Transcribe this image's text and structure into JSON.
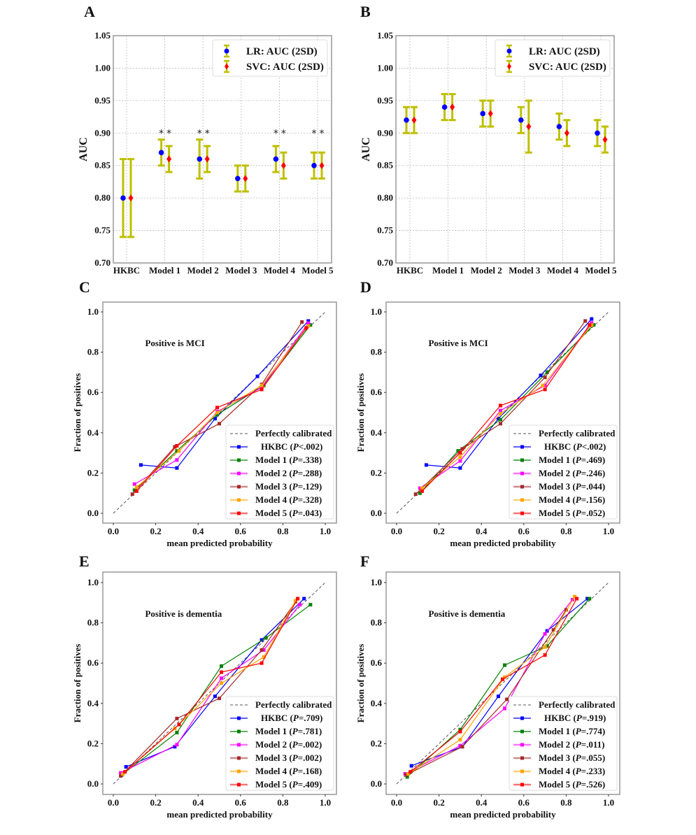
{
  "colors": {
    "lr": "#0000ff",
    "svc": "#ff0000",
    "errorbar": "#bfbf00",
    "frame": "#999999",
    "grid": "#bbbbbb",
    "perfect": "#555555",
    "series": {
      "HKBC": "#0000ff",
      "Model 1": "#008000",
      "Model 2": "#ff00ff",
      "Model 3": "#a52a2a",
      "Model 4": "#ffa500",
      "Model 5": "#ff0000"
    }
  },
  "chart_data": [
    {
      "panel": "A",
      "type": "scatter",
      "subtype": "errorbar",
      "title": "",
      "xlabel": "",
      "ylabel": "AUC",
      "ylim": [
        0.7,
        1.05
      ],
      "yticks": [
        "0.70",
        "0.75",
        "0.80",
        "0.85",
        "0.90",
        "0.95",
        "1.00",
        "1.05"
      ],
      "grid": true,
      "legend_position": "top-right",
      "categories": [
        "HKBC",
        "Model 1",
        "Model 2",
        "Model 3",
        "Model 4",
        "Model 5"
      ],
      "series": [
        {
          "name": "LR: AUC (2SD)",
          "marker": "circle",
          "values": [
            0.8,
            0.87,
            0.86,
            0.83,
            0.86,
            0.85
          ],
          "lower": [
            0.74,
            0.85,
            0.83,
            0.81,
            0.84,
            0.83
          ],
          "upper": [
            0.86,
            0.89,
            0.89,
            0.85,
            0.88,
            0.87
          ]
        },
        {
          "name": "SVC: AUC (2SD)",
          "marker": "diamond",
          "values": [
            0.8,
            0.86,
            0.86,
            0.83,
            0.85,
            0.85
          ],
          "lower": [
            0.74,
            0.84,
            0.84,
            0.81,
            0.83,
            0.83
          ],
          "upper": [
            0.86,
            0.88,
            0.88,
            0.85,
            0.87,
            0.87
          ]
        }
      ],
      "significance_markers": {
        "symbol": "*",
        "lr": [
          false,
          true,
          true,
          false,
          true,
          true
        ],
        "svc": [
          false,
          true,
          true,
          false,
          true,
          true
        ]
      }
    },
    {
      "panel": "B",
      "type": "scatter",
      "subtype": "errorbar",
      "title": "",
      "xlabel": "",
      "ylabel": "AUC",
      "ylim": [
        0.7,
        1.05
      ],
      "yticks": [
        "0.70",
        "0.75",
        "0.80",
        "0.85",
        "0.90",
        "0.95",
        "1.00",
        "1.05"
      ],
      "grid": true,
      "legend_position": "top-right",
      "categories": [
        "HKBC",
        "Model 1",
        "Model 2",
        "Model 3",
        "Model 4",
        "Model 5"
      ],
      "series": [
        {
          "name": "LR: AUC (2SD)",
          "marker": "circle",
          "values": [
            0.92,
            0.94,
            0.93,
            0.92,
            0.91,
            0.9
          ],
          "lower": [
            0.9,
            0.92,
            0.91,
            0.9,
            0.89,
            0.88
          ],
          "upper": [
            0.94,
            0.96,
            0.95,
            0.94,
            0.93,
            0.92
          ]
        },
        {
          "name": "SVC: AUC (2SD)",
          "marker": "diamond",
          "values": [
            0.92,
            0.94,
            0.93,
            0.91,
            0.9,
            0.89
          ],
          "lower": [
            0.9,
            0.92,
            0.91,
            0.87,
            0.88,
            0.87
          ],
          "upper": [
            0.94,
            0.96,
            0.95,
            0.95,
            0.92,
            0.91
          ]
        }
      ],
      "significance_markers": {
        "symbol": "*",
        "lr": [
          false,
          false,
          false,
          false,
          false,
          false
        ],
        "svc": [
          false,
          false,
          false,
          false,
          false,
          false
        ]
      }
    },
    {
      "panel": "C",
      "type": "line",
      "annotation": "Positive is MCI",
      "xlabel": "mean predicted probability",
      "ylabel": "Fraction of positives",
      "xlim": [
        0.0,
        1.0
      ],
      "ylim": [
        0.0,
        1.0
      ],
      "xticks": [
        "0.0",
        "0.2",
        "0.4",
        "0.6",
        "0.8",
        "1.0"
      ],
      "yticks": [
        "0.0",
        "0.2",
        "0.4",
        "0.6",
        "0.8",
        "1.0"
      ],
      "grid": false,
      "legend_position": "bottom-right",
      "reference": {
        "name": "Perfectly calibrated",
        "x": [
          0,
          1
        ],
        "y": [
          0,
          1
        ]
      },
      "series": [
        {
          "name": "HKBC",
          "p_label": "<.002",
          "x": [
            0.13,
            0.3,
            0.48,
            0.68,
            0.92
          ],
          "y": [
            0.24,
            0.225,
            0.47,
            0.68,
            0.955
          ]
        },
        {
          "name": "Model 1",
          "p_label": "=.338",
          "x": [
            0.1,
            0.3,
            0.49,
            0.71,
            0.93
          ],
          "y": [
            0.115,
            0.31,
            0.49,
            0.635,
            0.935
          ]
        },
        {
          "name": "Model 2",
          "p_label": "=.288",
          "x": [
            0.1,
            0.3,
            0.49,
            0.7,
            0.92
          ],
          "y": [
            0.145,
            0.265,
            0.505,
            0.625,
            0.945
          ]
        },
        {
          "name": "Model 3",
          "p_label": "=.129",
          "x": [
            0.09,
            0.29,
            0.5,
            0.7,
            0.89
          ],
          "y": [
            0.095,
            0.33,
            0.445,
            0.64,
            0.95
          ]
        },
        {
          "name": "Model 4",
          "p_label": "=.328",
          "x": [
            0.11,
            0.31,
            0.49,
            0.7,
            0.92
          ],
          "y": [
            0.13,
            0.31,
            0.5,
            0.635,
            0.93
          ]
        },
        {
          "name": "Model 5",
          "p_label": "=.043",
          "x": [
            0.11,
            0.3,
            0.49,
            0.7,
            0.91
          ],
          "y": [
            0.11,
            0.335,
            0.525,
            0.615,
            0.92
          ]
        }
      ]
    },
    {
      "panel": "D",
      "type": "line",
      "annotation": "Positive is MCI",
      "xlabel": "mean predicted probability",
      "ylabel": "Fraction of positives",
      "xlim": [
        0.0,
        1.0
      ],
      "ylim": [
        0.0,
        1.0
      ],
      "xticks": [
        "0.0",
        "0.2",
        "0.4",
        "0.6",
        "0.8",
        "1.0"
      ],
      "yticks": [
        "0.0",
        "0.2",
        "0.4",
        "0.6",
        "0.8",
        "1.0"
      ],
      "grid": false,
      "legend_position": "bottom-right",
      "reference": {
        "name": "Perfectly calibrated",
        "x": [
          0,
          1
        ],
        "y": [
          0,
          1
        ]
      },
      "series": [
        {
          "name": "HKBC",
          "p_label": "<.002",
          "x": [
            0.14,
            0.3,
            0.48,
            0.68,
            0.92
          ],
          "y": [
            0.24,
            0.225,
            0.47,
            0.685,
            0.965
          ]
        },
        {
          "name": "Model 1",
          "p_label": "=.469",
          "x": [
            0.11,
            0.29,
            0.49,
            0.71,
            0.93
          ],
          "y": [
            0.1,
            0.31,
            0.465,
            0.7,
            0.935
          ]
        },
        {
          "name": "Model 2",
          "p_label": "=.246",
          "x": [
            0.11,
            0.3,
            0.49,
            0.7,
            0.92
          ],
          "y": [
            0.125,
            0.26,
            0.51,
            0.635,
            0.945
          ]
        },
        {
          "name": "Model 3",
          "p_label": "=.044",
          "x": [
            0.09,
            0.31,
            0.49,
            0.7,
            0.89
          ],
          "y": [
            0.095,
            0.32,
            0.445,
            0.675,
            0.955
          ]
        },
        {
          "name": "Model 4",
          "p_label": "=.156",
          "x": [
            0.12,
            0.3,
            0.49,
            0.69,
            0.92
          ],
          "y": [
            0.125,
            0.28,
            0.495,
            0.635,
            0.935
          ]
        },
        {
          "name": "Model 5",
          "p_label": "=.052",
          "x": [
            0.12,
            0.3,
            0.49,
            0.7,
            0.91
          ],
          "y": [
            0.11,
            0.3,
            0.535,
            0.615,
            0.935
          ]
        }
      ]
    },
    {
      "panel": "E",
      "type": "line",
      "annotation": "Positive is dementia",
      "xlabel": "mean predicted probability",
      "ylabel": "Fraction of positives",
      "xlim": [
        0.0,
        1.0
      ],
      "ylim": [
        0.0,
        1.0
      ],
      "xticks": [
        "0.0",
        "0.2",
        "0.4",
        "0.6",
        "0.8",
        "1.0"
      ],
      "yticks": [
        "0.0",
        "0.2",
        "0.4",
        "0.6",
        "0.8",
        "1.0"
      ],
      "grid": false,
      "legend_position": "bottom-right",
      "reference": {
        "name": "Perfectly calibrated",
        "x": [
          0,
          1
        ],
        "y": [
          0,
          1
        ]
      },
      "series": [
        {
          "name": "HKBC",
          "p_label": "=.709",
          "x": [
            0.06,
            0.29,
            0.48,
            0.7,
            0.9
          ],
          "y": [
            0.085,
            0.185,
            0.435,
            0.715,
            0.92
          ]
        },
        {
          "name": "Model 1",
          "p_label": "=.781",
          "x": [
            0.04,
            0.3,
            0.51,
            0.72,
            0.93
          ],
          "y": [
            0.045,
            0.255,
            0.585,
            0.725,
            0.89
          ]
        },
        {
          "name": "Model 2",
          "p_label": "=.002",
          "x": [
            0.035,
            0.3,
            0.51,
            0.71,
            0.88
          ],
          "y": [
            0.055,
            0.195,
            0.525,
            0.665,
            0.89
          ]
        },
        {
          "name": "Model 3",
          "p_label": "=.002",
          "x": [
            0.035,
            0.3,
            0.5,
            0.7,
            0.86
          ],
          "y": [
            0.04,
            0.325,
            0.425,
            0.665,
            0.905
          ]
        },
        {
          "name": "Model 4",
          "p_label": "=.168",
          "x": [
            0.045,
            0.29,
            0.51,
            0.71,
            0.86
          ],
          "y": [
            0.05,
            0.275,
            0.5,
            0.63,
            0.91
          ]
        },
        {
          "name": "Model 5",
          "p_label": "=.409",
          "x": [
            0.055,
            0.31,
            0.51,
            0.7,
            0.87
          ],
          "y": [
            0.06,
            0.295,
            0.555,
            0.6,
            0.92
          ]
        }
      ]
    },
    {
      "panel": "F",
      "type": "line",
      "annotation": "Positive is dementia",
      "xlabel": "mean predicted probability",
      "ylabel": "Fraction of positives",
      "xlim": [
        0.0,
        1.0
      ],
      "ylim": [
        0.0,
        1.0
      ],
      "xticks": [
        "0.0",
        "0.2",
        "0.4",
        "0.6",
        "0.8",
        "1.0"
      ],
      "yticks": [
        "0.0",
        "0.2",
        "0.4",
        "0.6",
        "0.8",
        "1.0"
      ],
      "grid": false,
      "legend_position": "bottom-right",
      "reference": {
        "name": "Perfectly calibrated",
        "x": [
          0,
          1
        ],
        "y": [
          0,
          1
        ]
      },
      "series": [
        {
          "name": "HKBC",
          "p_label": "=.919",
          "x": [
            0.07,
            0.31,
            0.48,
            0.71,
            0.9
          ],
          "y": [
            0.09,
            0.185,
            0.435,
            0.76,
            0.92
          ]
        },
        {
          "name": "Model 1",
          "p_label": "=.774",
          "x": [
            0.05,
            0.3,
            0.51,
            0.71,
            0.91
          ],
          "y": [
            0.035,
            0.27,
            0.59,
            0.685,
            0.92
          ]
        },
        {
          "name": "Model 2",
          "p_label": "=.011",
          "x": [
            0.04,
            0.3,
            0.51,
            0.7,
            0.83
          ],
          "y": [
            0.05,
            0.19,
            0.375,
            0.745,
            0.915
          ]
        },
        {
          "name": "Model 3",
          "p_label": "=.055",
          "x": [
            0.045,
            0.31,
            0.52,
            0.74,
            0.8
          ],
          "y": [
            0.045,
            0.185,
            0.42,
            0.765,
            0.865
          ]
        },
        {
          "name": "Model 4",
          "p_label": "=.233",
          "x": [
            0.055,
            0.3,
            0.51,
            0.7,
            0.84
          ],
          "y": [
            0.05,
            0.22,
            0.53,
            0.68,
            0.93
          ]
        },
        {
          "name": "Model 5",
          "p_label": "=.526",
          "x": [
            0.065,
            0.3,
            0.5,
            0.7,
            0.85
          ],
          "y": [
            0.06,
            0.26,
            0.52,
            0.64,
            0.92
          ]
        }
      ]
    }
  ]
}
